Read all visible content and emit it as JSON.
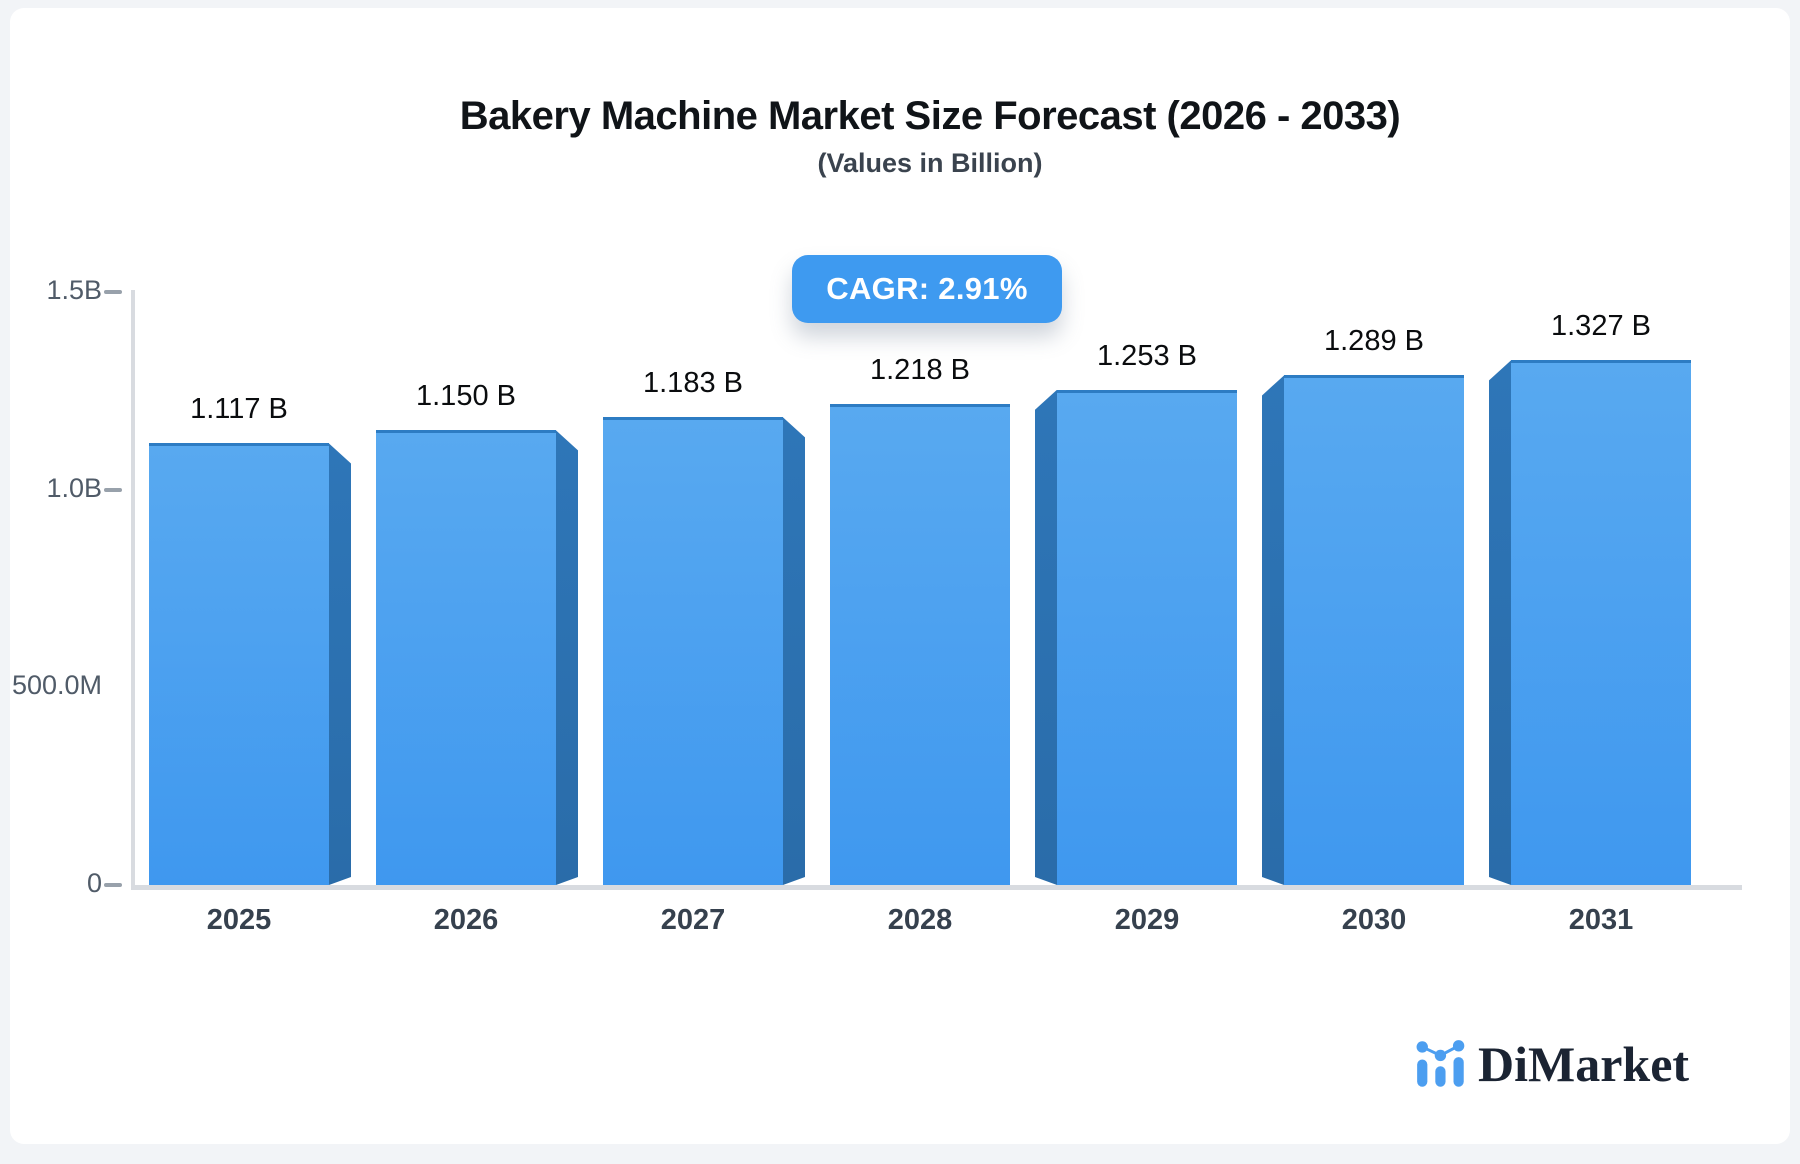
{
  "header": {
    "title": "Bakery Machine Market Size Forecast (2026 - 2033)",
    "subtitle": "(Values in Billion)",
    "cagr_badge": "CAGR: 2.91%"
  },
  "chart_data": {
    "type": "bar",
    "title": "Bakery Machine Market Size Forecast (2026 - 2033)",
    "subtitle": "(Values in Billion)",
    "categories": [
      "2025",
      "2026",
      "2027",
      "2028",
      "2029",
      "2030",
      "2031"
    ],
    "values": [
      1.117,
      1.15,
      1.183,
      1.218,
      1.253,
      1.289,
      1.327
    ],
    "bar_labels": [
      "1.117 B",
      "1.150 B",
      "1.183 B",
      "1.218 B",
      "1.253 B",
      "1.289 B",
      "1.327 B"
    ],
    "unit": "Billion",
    "xlabel": "",
    "ylabel": "",
    "ylim": [
      0,
      1.5
    ],
    "yticks": [
      {
        "label": "1.5B",
        "value": 1.5,
        "tick": true
      },
      {
        "label": "1.0B",
        "value": 1.0,
        "tick": true
      },
      {
        "label": "500.0M",
        "value": 0.5,
        "tick": false
      },
      {
        "label": "0",
        "value": 0.0,
        "tick": true
      }
    ],
    "grid": false,
    "legend": null,
    "colors": {
      "bar_face_top": "#58a9f0",
      "bar_face_bottom": "#3f98ef",
      "bar_top_edge": "#2d7cc3",
      "bar_side": "#2e76b8",
      "axis": "#d8dbe0",
      "badge": "#3e9af0"
    }
  },
  "footer": {
    "brand_name": "DiMarket",
    "brand_icon": "bar-line-chart-icon"
  }
}
